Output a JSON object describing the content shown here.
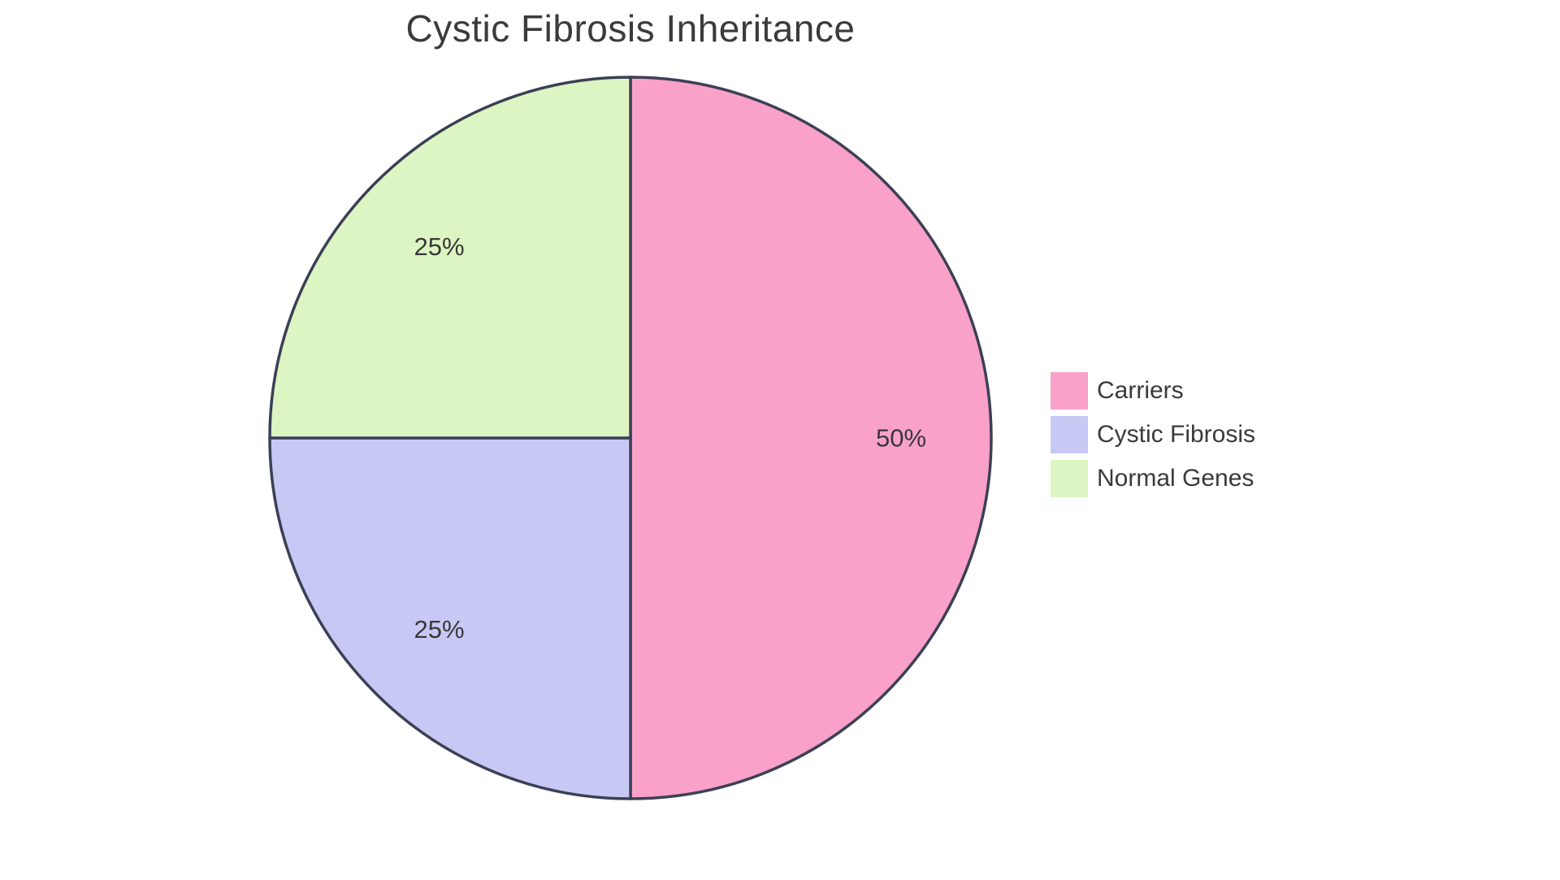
{
  "title": "Cystic Fibrosis Inheritance",
  "chart_data": {
    "type": "pie",
    "title": "Cystic Fibrosis Inheritance",
    "start_angle_deg": 0,
    "direction": "clockwise",
    "legend_position": "right",
    "background_color": "#ffffff",
    "outline_color": "#3c4055",
    "outline_width": 3.5,
    "percent_label_color": "#383838",
    "percent_label_font_size": 31,
    "segments": [
      {
        "label": "Carriers",
        "value": 50,
        "percent_label": "50%",
        "color": "#f9a1c9"
      },
      {
        "label": "Cystic Fibrosis",
        "value": 25,
        "percent_label": "25%",
        "color": "#c8c8f5"
      },
      {
        "label": "Normal Genes",
        "value": 25,
        "percent_label": "25%",
        "color": "#dcf5c2"
      }
    ]
  }
}
